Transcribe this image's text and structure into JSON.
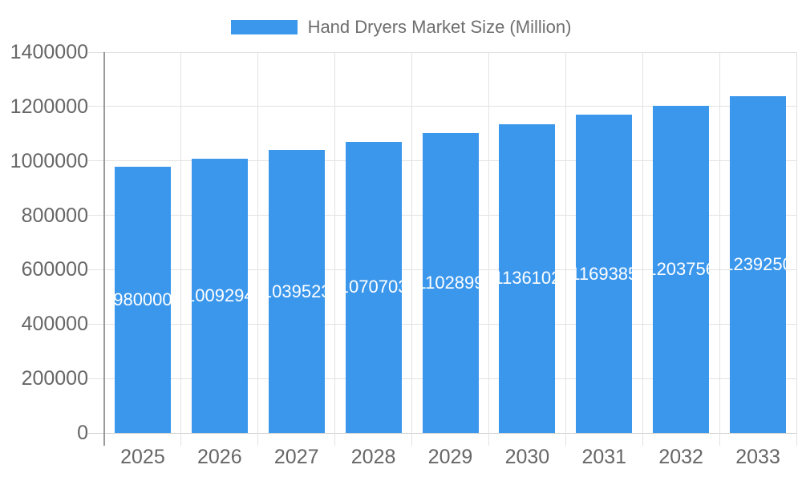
{
  "colors": {
    "bar": "#3B97EC",
    "bar_label_text": "#FFFFFF",
    "axis_text": "#666666",
    "legend_text": "#6E6E6E",
    "gridline": "#E2E2E2",
    "baseline": "#CCCCCC",
    "y_axis_line": "#9A9A9A",
    "background": "#FFFFFF"
  },
  "chart_data": {
    "type": "bar",
    "title": "Hand Dryers Market Size (Million)",
    "series_name": "Hand Dryers Market Size (Million)",
    "categories": [
      "2025",
      "2026",
      "2027",
      "2028",
      "2029",
      "2030",
      "2031",
      "2032",
      "2033"
    ],
    "values": [
      980000,
      1009294,
      1039523,
      1070703,
      1102899,
      1136102,
      1169385,
      1203756,
      1239250
    ],
    "value_labels_visible_text": [
      "980000",
      "00929",
      "03952",
      "07070",
      "10289",
      "13610",
      "16938",
      "20375",
      "23925"
    ],
    "value_label_position": "inside-center, white, clipped to bar width",
    "xlabel": "",
    "ylabel": "",
    "ylim": [
      0,
      1400000
    ],
    "ytick_step": 200000,
    "yticks": [
      0,
      200000,
      400000,
      600000,
      800000,
      1000000,
      1200000,
      1400000
    ],
    "grid": true,
    "legend_position": "top-center"
  }
}
